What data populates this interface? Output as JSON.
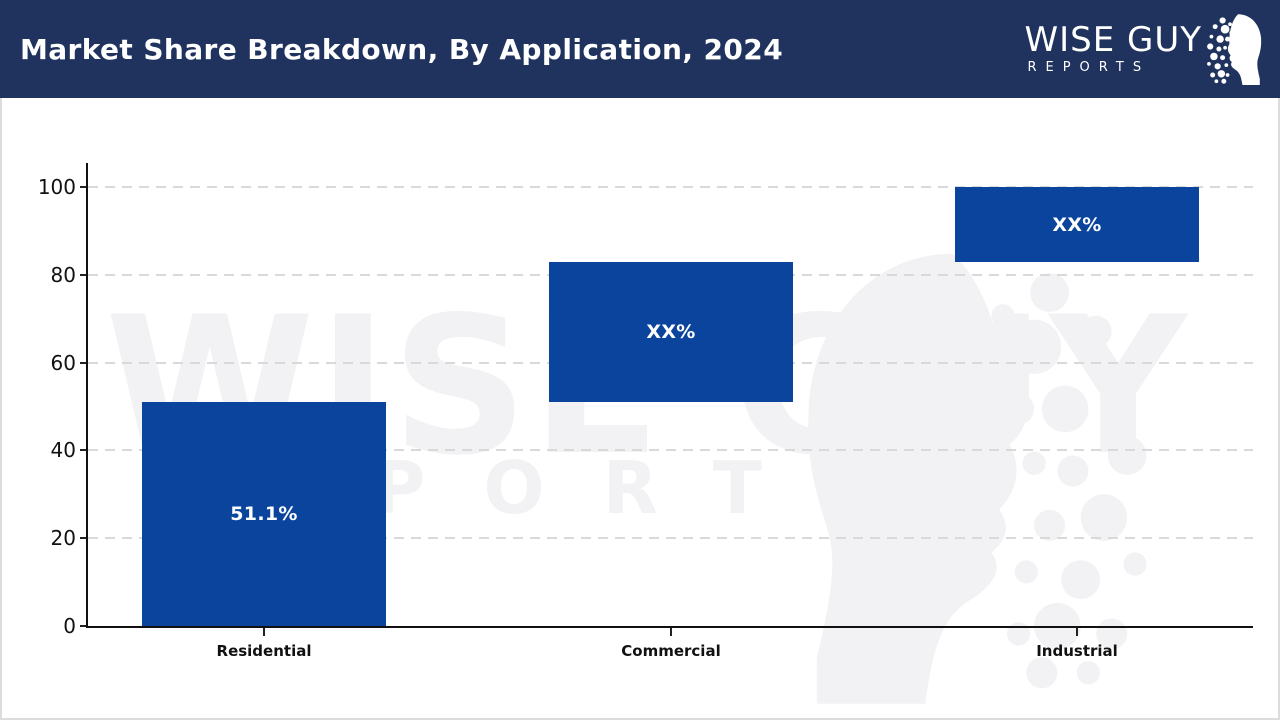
{
  "header": {
    "title": "Market Share Breakdown, By Application, 2024",
    "logo": {
      "line1": "WISE GUY",
      "line2": "REPORTS",
      "icon": "dotted-head-profile"
    }
  },
  "watermark": {
    "line1": "WISE GUY",
    "line2": "REPORTS",
    "icon": "dotted-head-profile"
  },
  "chart_data": {
    "type": "bar",
    "subtype": "waterfall",
    "title": "Market Share Breakdown, By Application, 2024",
    "categories": [
      "Residential",
      "Commercial",
      "Industrial"
    ],
    "segments": [
      {
        "category": "Residential",
        "start": 0,
        "end": 51.1,
        "size": 51.1,
        "label": "51.1%"
      },
      {
        "category": "Commercial",
        "start": 51.1,
        "end": 82.9,
        "size": 31.8,
        "label": "XX%"
      },
      {
        "category": "Industrial",
        "start": 82.9,
        "end": 100,
        "size": 17.1,
        "label": "XX%"
      }
    ],
    "y_ticks": [
      0,
      20,
      40,
      60,
      80,
      100
    ],
    "ylim": [
      0,
      105
    ],
    "xlabel": "",
    "ylabel": "",
    "grid": "horizontal-dashed",
    "legend": "none",
    "bar_color": "#0a449c"
  },
  "colors": {
    "header_bg": "#20335e",
    "bar": "#0a449c",
    "gridline": "#d9d9d9",
    "axis": "#111111",
    "watermark": "#f2f2f4",
    "frame_line": "#dcdcdc",
    "text_on_dark": "#ffffff",
    "text": "#111111"
  }
}
